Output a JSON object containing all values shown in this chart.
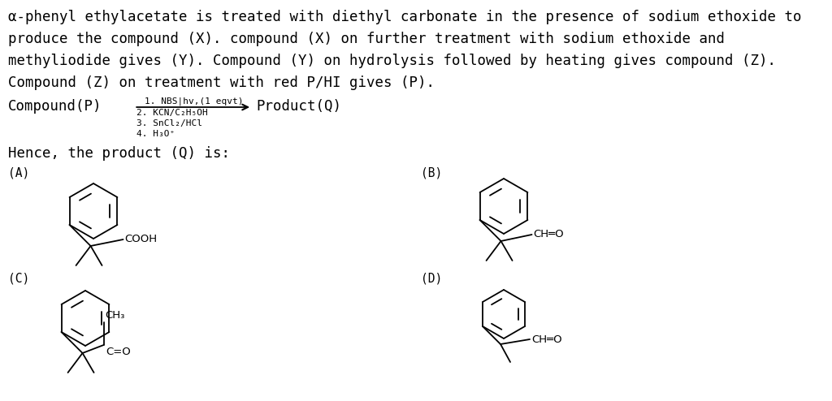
{
  "bg_color": "#ffffff",
  "text_color": "#1a1a1a",
  "title_lines": [
    "α-phenyl ethylacetate is treated with diethyl carbonate in the presence of sodium ethoxide to",
    "produce the compound (X). compound (X) on further treatment with sodium ethoxide and",
    "methyliodide gives (Y). Compound (Y) on hydrolysis followed by heating gives compound (Z).",
    "Compound (Z) on treatment with red P/HI gives (P)."
  ],
  "reaction_left": "Compound(P)",
  "reaction_right": "Product(Q)",
  "reaction_step1": "1. NBS|hv,(1 eqvt)",
  "reaction_step2": "2. KCN/C₂H₅OH",
  "reaction_step3": "3. SnCl₂/HCl",
  "reaction_step4": "4. H₃O⁺",
  "hence_text": "Hence, the product (Q) is:",
  "lw": 1.3,
  "font_size_main": 12.5,
  "font_size_small": 8.0,
  "font_size_label": 10.5,
  "font_size_struct": 9.5
}
